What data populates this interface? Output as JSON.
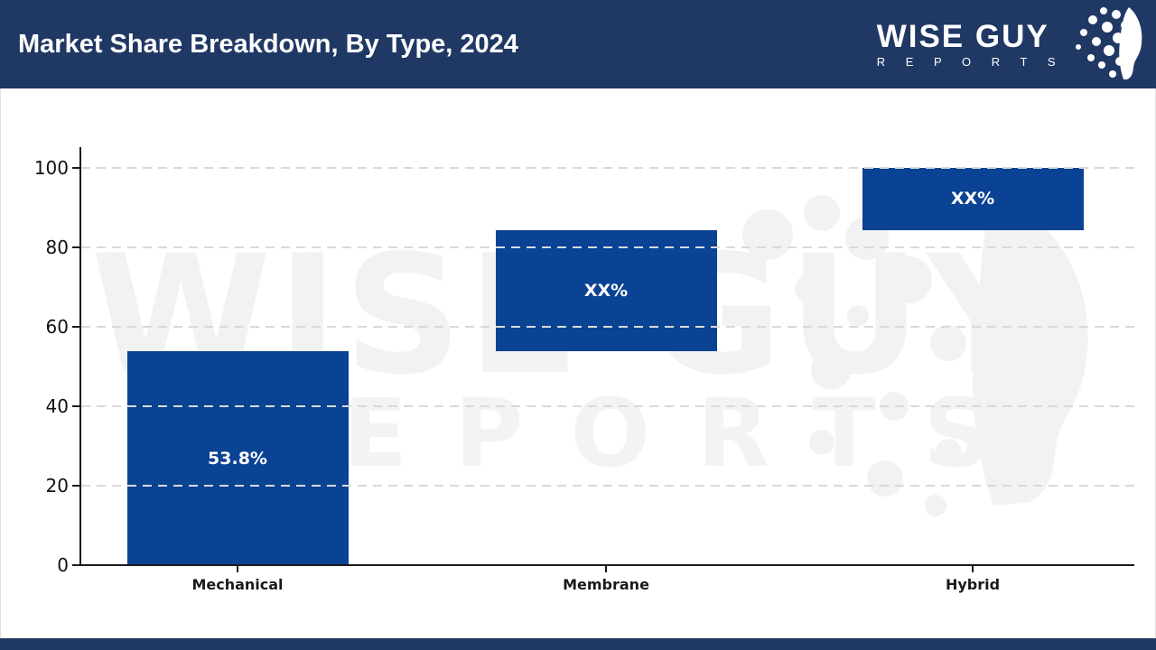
{
  "header": {
    "title": "Market Share Breakdown, By Type, 2024",
    "bg_color": "#203864",
    "logo": {
      "wordmark": "WISE GUY",
      "subtext": "R E P O R T S",
      "head_icon": "dotted-face-profile"
    }
  },
  "watermark": {
    "line1": "WISE GUY",
    "line2": "REPORTS",
    "color": "#f2f2f2"
  },
  "chart_data": {
    "type": "bar",
    "variant": "stacked-waterfall",
    "title": "Market Share Breakdown, By Type, 2024",
    "categories": [
      "Mechanical",
      "Membrane",
      "Hybrid"
    ],
    "series": [
      {
        "name": "Market share (%)",
        "segments": [
          {
            "category": "Mechanical",
            "start": 0,
            "end": 53.8,
            "label": "53.8%"
          },
          {
            "category": "Membrane",
            "start": 53.8,
            "end": 84.4,
            "label": "XX%"
          },
          {
            "category": "Hybrid",
            "start": 84.4,
            "end": 100,
            "label": "XX%"
          }
        ]
      }
    ],
    "ylim": [
      0,
      100
    ],
    "yticks": [
      0,
      20,
      40,
      60,
      80,
      100
    ],
    "xlabel": "",
    "ylabel": "",
    "grid": "horizontal-dashed",
    "legend": "none",
    "bar_color": "#0a4294",
    "grid_color": "#d9d9d9",
    "axis_color": "#1a1a1a",
    "bar_label_color": "#ffffff"
  },
  "footer": {
    "bg_color": "#203864"
  }
}
